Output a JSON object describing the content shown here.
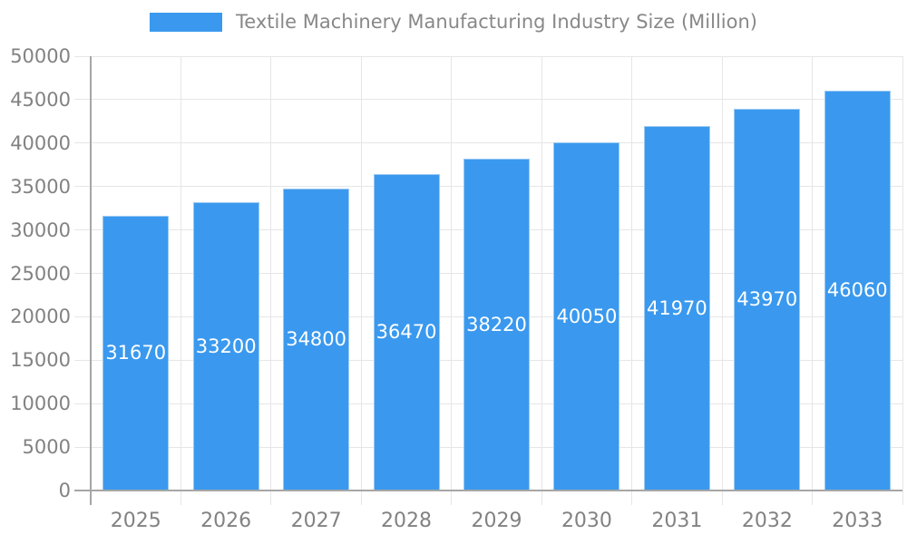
{
  "legend": {
    "label": "Textile Machinery Manufacturing Industry Size (Million)",
    "swatch_color": "#3A99EE"
  },
  "chart_data": {
    "type": "bar",
    "title": "Textile Machinery Manufacturing Industry Size (Million)",
    "series_name": "Textile Machinery Manufacturing Industry Size (Million)",
    "categories": [
      "2025",
      "2026",
      "2027",
      "2028",
      "2029",
      "2030",
      "2031",
      "2032",
      "2033"
    ],
    "values": [
      31670,
      33200,
      34800,
      36470,
      38220,
      40050,
      41970,
      43970,
      46060
    ],
    "value_labels": [
      "31670",
      "33200",
      "34800",
      "36470",
      "38220",
      "40050",
      "41970",
      "43970",
      "46060"
    ],
    "xlabel": "",
    "ylabel": "",
    "ylim": [
      0,
      50000
    ],
    "ytick_step": 5000,
    "ytick_labels": [
      "0",
      "5000",
      "10000",
      "15000",
      "20000",
      "25000",
      "30000",
      "35000",
      "40000",
      "45000",
      "50000"
    ],
    "grid": true,
    "legend_position": "top",
    "bar_color": "#3A99EE",
    "bar_border_color": "#9CCAF3",
    "value_label_color": "#FFFFFF",
    "grid_color": "#E6E6E6",
    "axis_color": "#A6A6A6",
    "tick_text_color": "#828282",
    "legend_text_color": "#888888",
    "background_color": "#FFFFFF"
  }
}
